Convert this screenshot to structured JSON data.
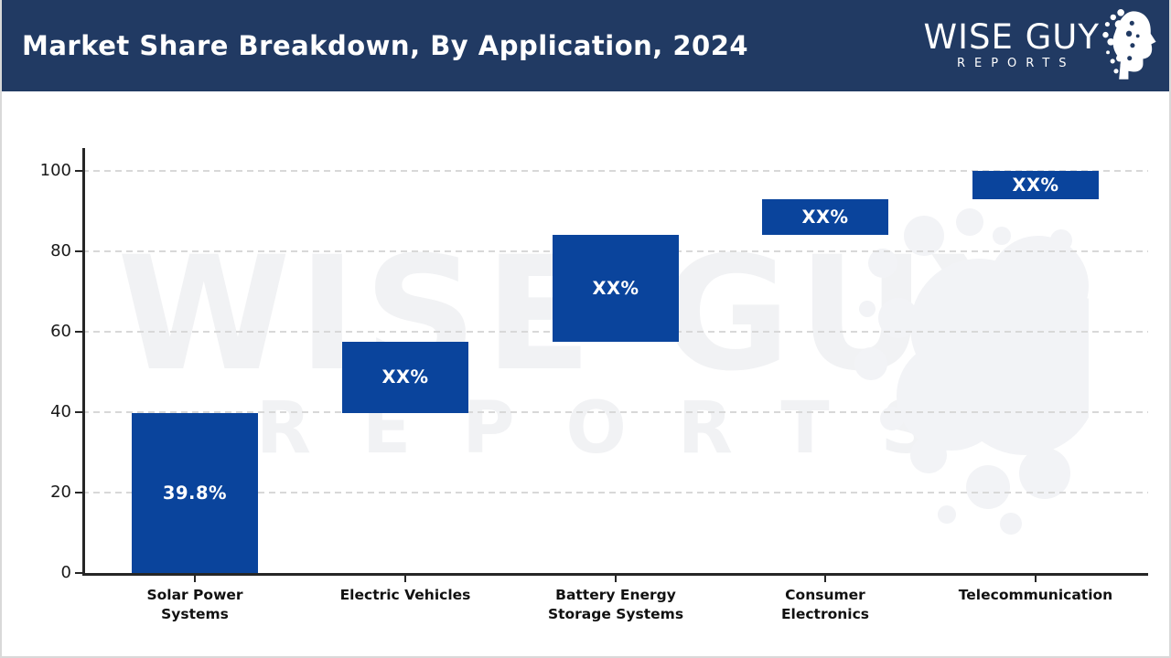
{
  "header": {
    "title": "Market Share Breakdown, By Application, 2024",
    "logo": {
      "name": "WISE GUY",
      "subname": "REPORTS"
    }
  },
  "watermark": {
    "line1": "WISE GUY",
    "line2": "REPORTS"
  },
  "chart_data": {
    "type": "bar",
    "subtype": "waterfall",
    "title": "Market Share Breakdown, By Application, 2024",
    "xlabel": "",
    "ylabel": "",
    "ylim": [
      0,
      105
    ],
    "yticks": [
      0,
      20,
      40,
      60,
      80,
      100
    ],
    "grid": "horizontal-dashed",
    "legend": "none",
    "categories": [
      "Solar Power\nSystems",
      "Electric Vehicles",
      "Battery Energy\nStorage Systems",
      "Consumer\nElectronics",
      "Telecommunication"
    ],
    "segments": [
      {
        "category": "Solar Power Systems",
        "start": 0,
        "end": 39.8,
        "label": "39.8%"
      },
      {
        "category": "Electric Vehicles",
        "start": 39.8,
        "end": 57.5,
        "label": "XX%"
      },
      {
        "category": "Battery Energy Storage Systems",
        "start": 57.5,
        "end": 84.0,
        "label": "XX%"
      },
      {
        "category": "Consumer Electronics",
        "start": 84.0,
        "end": 93.0,
        "label": "XX%"
      },
      {
        "category": "Telecommunication",
        "start": 93.0,
        "end": 100.0,
        "label": "XX%"
      }
    ]
  },
  "colors": {
    "header_bg": "#213a63",
    "bar": "#0a449c",
    "value_label": "#ffffff",
    "axis": "#262626",
    "gridline": "#d8d8d8",
    "watermark": "#f1f2f4"
  }
}
